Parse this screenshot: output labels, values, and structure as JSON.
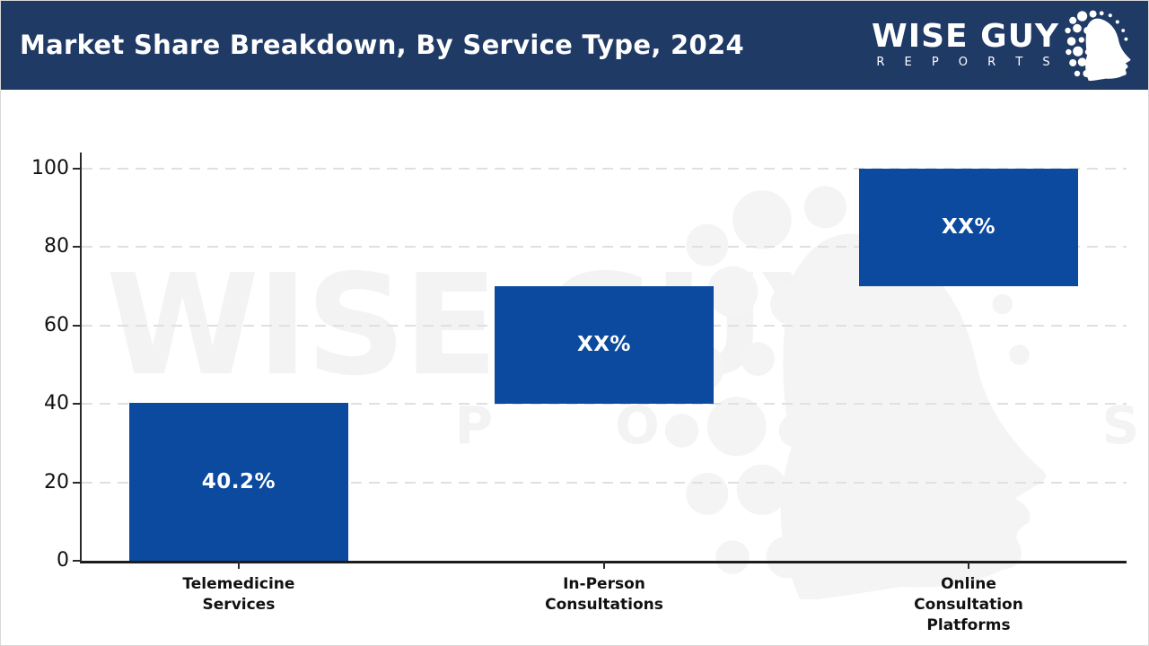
{
  "header": {
    "title": "Market Share Breakdown, By Service Type, 2024",
    "logo": {
      "name": "WISE GUY",
      "sub": "R E P O R T S"
    }
  },
  "watermark": {
    "line1": "WISE GUY",
    "line2": "R E P O R T S"
  },
  "chart_data": {
    "type": "bar",
    "subtype": "waterfall",
    "title": "Market Share Breakdown, By Service Type, 2024",
    "categories": [
      "Telemedicine\nServices",
      "In-Person\nConsultations",
      "Online\nConsultation\nPlatforms"
    ],
    "series": [
      {
        "name": "Market share (%)",
        "segments": [
          {
            "category": "Telemedicine Services",
            "start": 0,
            "end": 40.2,
            "label": "40.2%"
          },
          {
            "category": "In-Person Consultations",
            "start": 40,
            "end": 70,
            "label": "XX%"
          },
          {
            "category": "Online Consultation Platforms",
            "start": 70,
            "end": 100,
            "label": "XX%"
          }
        ]
      }
    ],
    "yticks": [
      0,
      20,
      40,
      60,
      80,
      100
    ],
    "ylim": [
      0,
      104
    ],
    "xlabel": "",
    "ylabel": "",
    "grid": "horizontal-dashed",
    "legend": "none"
  },
  "colors": {
    "header_bg": "#203a66",
    "bar": "#0b4a9e",
    "grid": "#e0e0e0",
    "axis": "#2a2a2a",
    "watermark": "#f3f3f3"
  }
}
